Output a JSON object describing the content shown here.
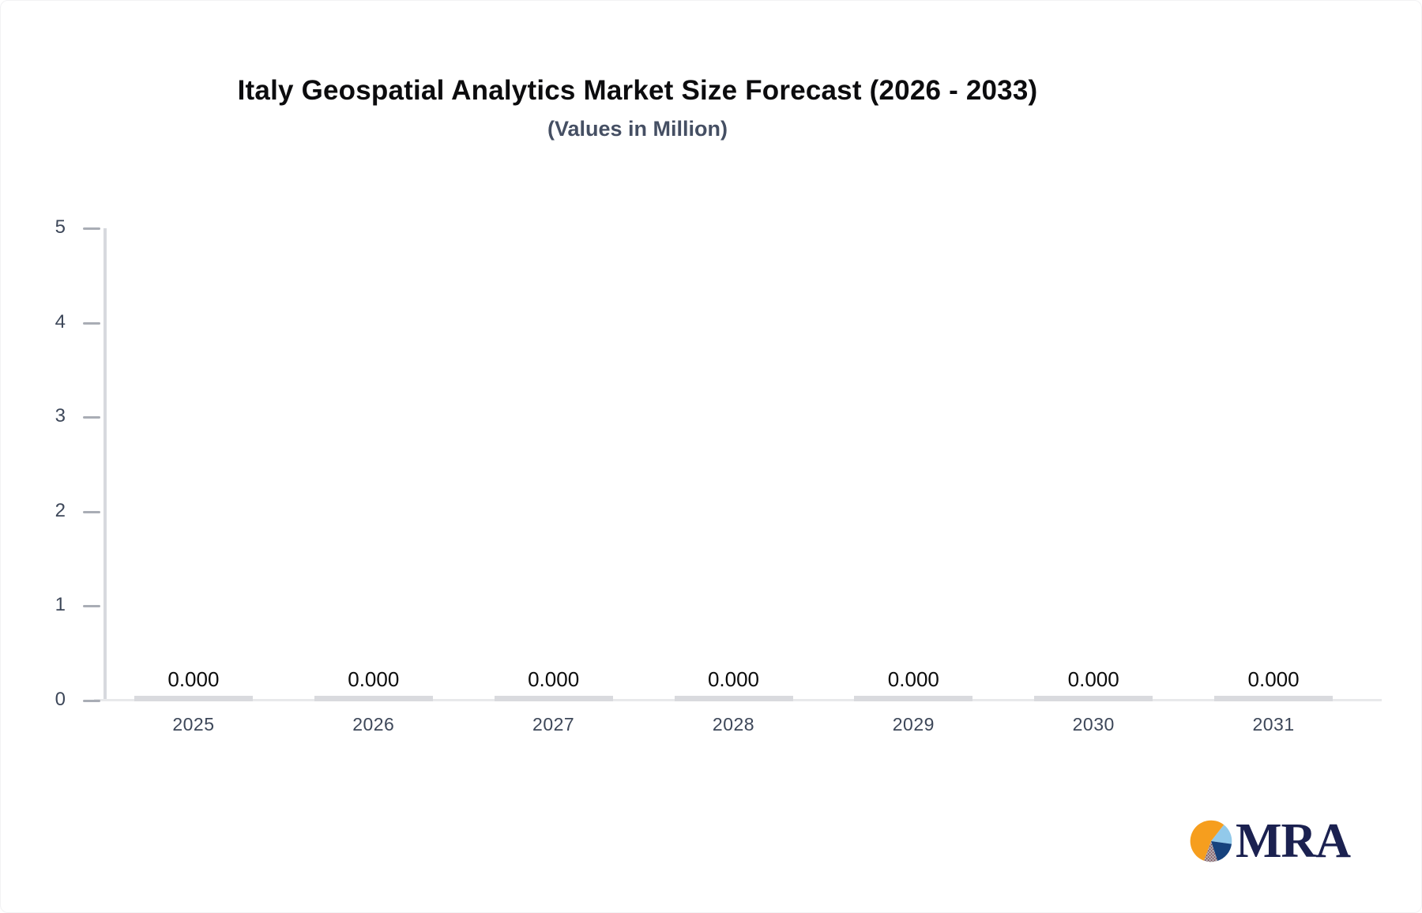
{
  "header": {
    "title": "Italy Geospatial Analytics Market Size Forecast (2026 - 2033)",
    "subtitle": "(Values in Million)"
  },
  "chart_data": {
    "type": "bar",
    "title": "Italy Geospatial Analytics Market Size Forecast (2026 - 2033)",
    "subtitle": "(Values in Million)",
    "categories": [
      "2025",
      "2026",
      "2027",
      "2028",
      "2029",
      "2030",
      "2031"
    ],
    "values": [
      0,
      0,
      0,
      0,
      0,
      0,
      0
    ],
    "value_labels": [
      "0.000",
      "0.000",
      "0.000",
      "0.000",
      "0.000",
      "0.000",
      "0.000"
    ],
    "xlabel": "",
    "ylabel": "",
    "ylim": [
      0,
      5
    ],
    "yticks": [
      0,
      1,
      2,
      3,
      4,
      5
    ],
    "grid": false,
    "legend_position": "none",
    "bar_color": "#d9dade",
    "axis_line_color": "#d7d9de",
    "tick_color": "#a9adb5",
    "label_color": "#3d4759",
    "value_label_color": "#0b0b0b"
  },
  "logo": {
    "text": "MRA",
    "icon": "pie-chart-icon",
    "text_color": "#1b2150",
    "pie_orange": "#f69e1e",
    "pie_light_blue": "#92c9ea",
    "pie_dark_blue": "#16427d",
    "pie_gray": "#b3b4b8",
    "pie_dot": "#7d3b47"
  },
  "colors": {
    "background": "#ffffff",
    "title": "#0c0c0e",
    "subtitle": "#454f63"
  }
}
